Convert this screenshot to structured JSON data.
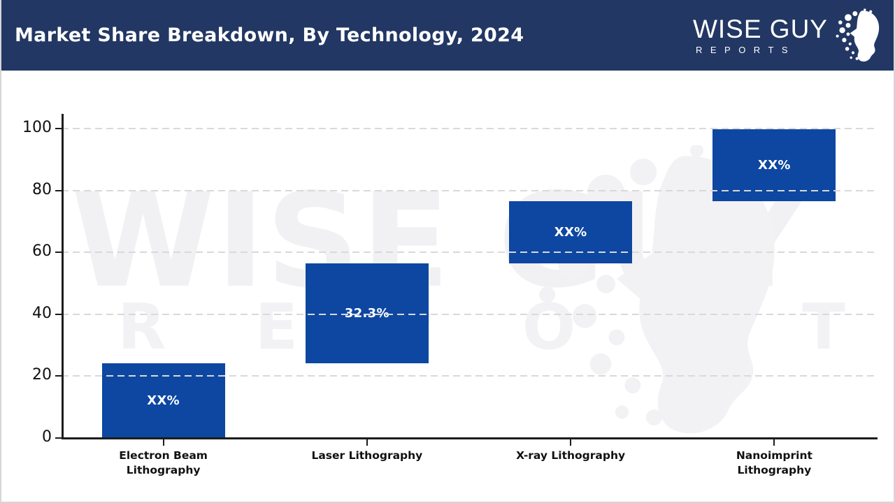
{
  "header": {
    "title": "Market Share Breakdown, By Technology, 2024",
    "logo": {
      "brand": "WISE GUY",
      "sub": "REPORTS"
    }
  },
  "watermark": {
    "brand": "WISE GUY",
    "sub": "R E P O R T S"
  },
  "chart_data": {
    "type": "bar",
    "subtype": "floating-segment-waterfall",
    "title": "Market Share Breakdown, By Technology, 2024",
    "categories": [
      "Electron Beam Lithography",
      "Laser Lithography",
      "X-ray Lithography",
      "Nanoimprint Lithography"
    ],
    "bars": [
      {
        "category": "Electron Beam Lithography",
        "start": 0,
        "end": 24.2,
        "label": "XX%"
      },
      {
        "category": "Laser Lithography",
        "start": 24.2,
        "end": 56.5,
        "label": "32.3%"
      },
      {
        "category": "X-ray Lithography",
        "start": 56.5,
        "end": 76.5,
        "label": "XX%"
      },
      {
        "category": "Nanoimprint Lithography",
        "start": 76.5,
        "end": 99.9,
        "label": "XX%"
      }
    ],
    "xlabel": "",
    "ylabel": "",
    "ylim": [
      0,
      105
    ],
    "yticks": [
      0,
      20,
      40,
      60,
      80,
      100
    ],
    "grid": {
      "horizontal": true,
      "style": "dashed",
      "color": "#d9d9d9"
    },
    "legend": "none",
    "colors": {
      "bar": "#0d47a1",
      "bar_label": "#ffffff",
      "axis": "#1c1c1c",
      "tick_label": "#111111"
    }
  },
  "colors": {
    "header_bg": "#223763",
    "page_border": "#d6d6d6",
    "watermark": "#f1f1f4"
  }
}
